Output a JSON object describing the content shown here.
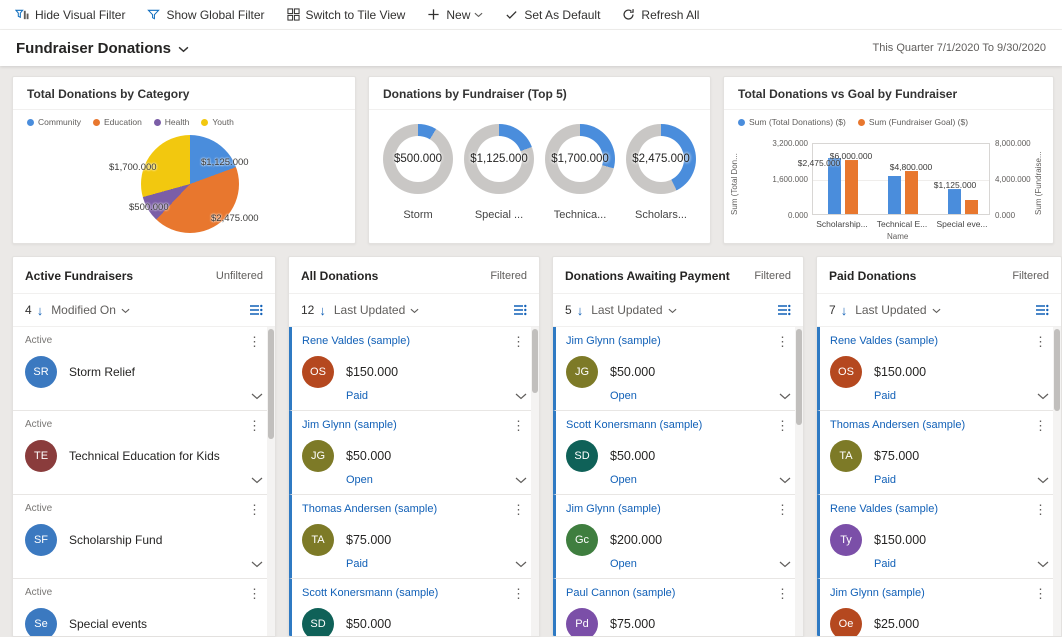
{
  "toolbar": {
    "items": [
      {
        "label": "Hide Visual Filter",
        "icon": "visual-filter-icon"
      },
      {
        "label": "Show Global Filter",
        "icon": "global-filter-icon"
      },
      {
        "label": "Switch to Tile View",
        "icon": "tile-view-icon"
      },
      {
        "label": "New",
        "icon": "plus-icon",
        "dropdown": true
      },
      {
        "label": "Set As Default",
        "icon": "check-icon"
      },
      {
        "label": "Refresh All",
        "icon": "refresh-icon"
      }
    ]
  },
  "header": {
    "title": "Fundraiser Donations",
    "timeframe": "This Quarter 7/1/2020 To 9/30/2020"
  },
  "pie_card": {
    "title": "Total Donations by Category",
    "chart_data": {
      "type": "pie",
      "slices": [
        {
          "label": "Community",
          "value": 1125,
          "display": "$1,125.000",
          "color": "#4a8ddc"
        },
        {
          "label": "Education",
          "value": 2475,
          "display": "$2,475.000",
          "color": "#e8772e"
        },
        {
          "label": "Health",
          "value": 500,
          "display": "$500.000",
          "color": "#7b5ea7"
        },
        {
          "label": "Youth",
          "value": 1700,
          "display": "$1,700.000",
          "color": "#f2c80f"
        }
      ]
    }
  },
  "donut_card": {
    "title": "Donations by Fundraiser (Top 5)",
    "chart_data": {
      "type": "pie",
      "total": 5800,
      "accent": "#4a8ddc",
      "ring": "#c9c7c5",
      "donuts": [
        {
          "label": "Storm",
          "value": 500,
          "display": "$500.000"
        },
        {
          "label": "Special ...",
          "value": 1125,
          "display": "$1,125.000"
        },
        {
          "label": "Technica...",
          "value": 1700,
          "display": "$1,700.000"
        },
        {
          "label": "Scholars...",
          "value": 2475,
          "display": "$2,475.000"
        }
      ]
    }
  },
  "bar_card": {
    "title": "Total Donations vs Goal by Fundraiser",
    "chart_data": {
      "type": "bar",
      "legend": [
        {
          "label": "Sum (Total Donations) ($)",
          "color": "#4a8ddc"
        },
        {
          "label": "Sum (Fundraiser Goal) ($)",
          "color": "#e8772e"
        }
      ],
      "left_axis": {
        "title": "Sum (Total Don...",
        "ticks": [
          "3,200.000",
          "1,600.000",
          "0.000"
        ],
        "max": 3200
      },
      "right_axis": {
        "title": "Sum (Fundraise...",
        "ticks": [
          "8,000.000",
          "4,000.000",
          "0.000"
        ],
        "max": 8000
      },
      "x_title": "Name",
      "groups": [
        {
          "category": "Scholarship...",
          "donation": 2475,
          "goal": 6000,
          "donation_label": "$2,475.000",
          "goal_label": "$6,000.000"
        },
        {
          "category": "Technical E...",
          "donation": 1700,
          "goal": 4800,
          "donation_label": "",
          "goal_label": "$4,800.000"
        },
        {
          "category": "Special eve...",
          "donation": 1125,
          "goal": 1500,
          "donation_label": "$1,125.000",
          "goal_label": ""
        }
      ]
    }
  },
  "columns": [
    {
      "title": "Active Fundraisers",
      "filter_state": "Unfiltered",
      "count": "4",
      "sort_field": "Modified On",
      "type": "fundraiser",
      "items": [
        {
          "status": "Active",
          "initials": "SR",
          "avatar_color": "#3b79c0",
          "name": "Storm Relief"
        },
        {
          "status": "Active",
          "initials": "TE",
          "avatar_color": "#8a3c3c",
          "name": "Technical Education for Kids"
        },
        {
          "status": "Active",
          "initials": "SF",
          "avatar_color": "#3b79c0",
          "name": "Scholarship Fund"
        },
        {
          "status": "Active",
          "initials": "Se",
          "avatar_color": "#3b79c0",
          "name": "Special events"
        }
      ]
    },
    {
      "title": "All Donations",
      "filter_state": "Filtered",
      "count": "12",
      "sort_field": "Last Updated",
      "type": "donation",
      "items": [
        {
          "name": "Rene Valdes (sample)",
          "initials": "OS",
          "avatar_color": "#b5481f",
          "amount": "$150.000",
          "status": "Paid"
        },
        {
          "name": "Jim Glynn (sample)",
          "initials": "JG",
          "avatar_color": "#7d7a27",
          "amount": "$50.000",
          "status": "Open"
        },
        {
          "name": "Thomas Andersen (sample)",
          "initials": "TA",
          "avatar_color": "#7d7a27",
          "amount": "$75.000",
          "status": "Paid"
        },
        {
          "name": "Scott Konersmann (sample)",
          "initials": "SD",
          "avatar_color": "#0f6158",
          "amount": "$50.000",
          "status": ""
        }
      ]
    },
    {
      "title": "Donations Awaiting Payment",
      "filter_state": "Filtered",
      "count": "5",
      "sort_field": "Last Updated",
      "type": "donation",
      "items": [
        {
          "name": "Jim Glynn (sample)",
          "initials": "JG",
          "avatar_color": "#7d7a27",
          "amount": "$50.000",
          "status": "Open"
        },
        {
          "name": "Scott Konersmann (sample)",
          "initials": "SD",
          "avatar_color": "#0f6158",
          "amount": "$50.000",
          "status": "Open"
        },
        {
          "name": "Jim Glynn (sample)",
          "initials": "Gc",
          "avatar_color": "#3f7e3f",
          "amount": "$200.000",
          "status": "Open"
        },
        {
          "name": "Paul Cannon (sample)",
          "initials": "Pd",
          "avatar_color": "#7b4fa8",
          "amount": "$75.000",
          "status": ""
        }
      ]
    },
    {
      "title": "Paid Donations",
      "filter_state": "Filtered",
      "count": "7",
      "sort_field": "Last Updated",
      "type": "donation",
      "items": [
        {
          "name": "Rene Valdes (sample)",
          "initials": "OS",
          "avatar_color": "#b5481f",
          "amount": "$150.000",
          "status": "Paid"
        },
        {
          "name": "Thomas Andersen (sample)",
          "initials": "TA",
          "avatar_color": "#7d7a27",
          "amount": "$75.000",
          "status": "Paid"
        },
        {
          "name": "Rene Valdes (sample)",
          "initials": "Ty",
          "avatar_color": "#7b4fa8",
          "amount": "$150.000",
          "status": "Paid"
        },
        {
          "name": "Jim Glynn (sample)",
          "initials": "Oe",
          "avatar_color": "#b5481f",
          "amount": "$25.000",
          "status": ""
        }
      ]
    }
  ]
}
